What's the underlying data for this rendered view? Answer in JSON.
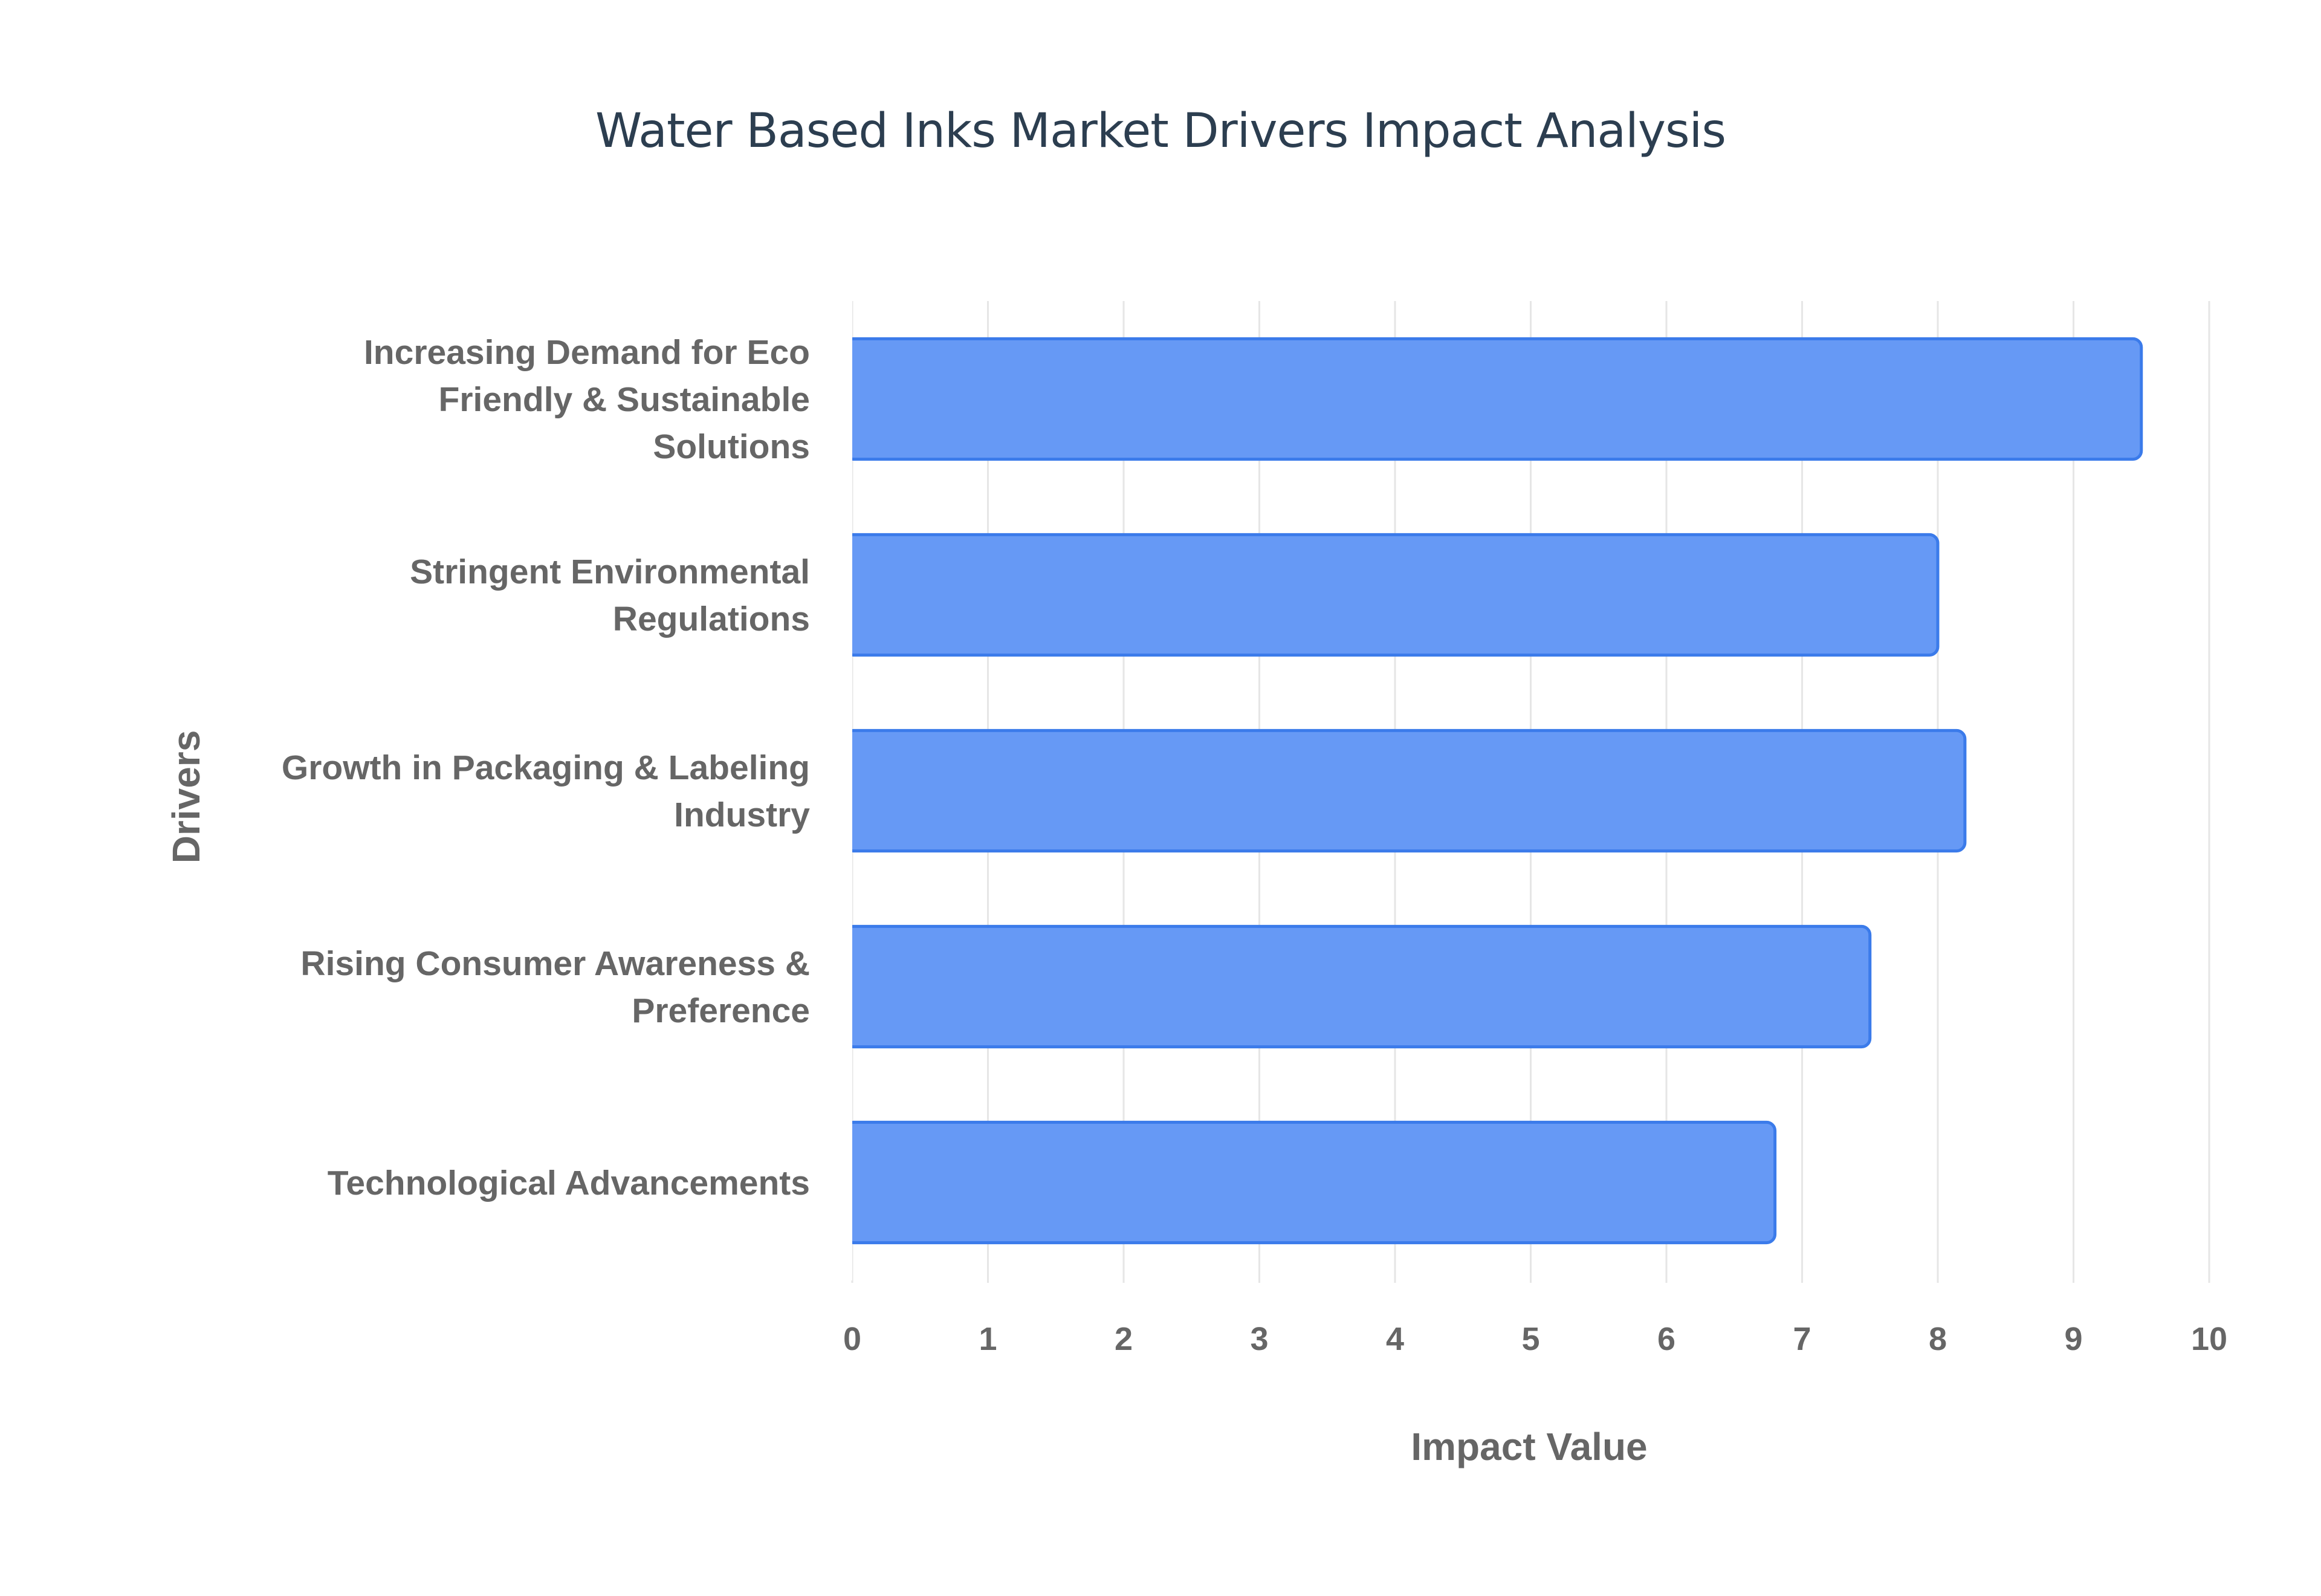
{
  "chart_data": {
    "type": "bar",
    "orientation": "horizontal",
    "title": "Water Based Inks Market Drivers Impact Analysis",
    "xlabel": "Impact Value",
    "ylabel": "Drivers",
    "categories": [
      "Increasing Demand for Eco Friendly & Sustainable Solutions",
      "Stringent Environmental Regulations",
      "Growth in Packaging & Labeling Industry",
      "Rising Consumer Awareness & Preference",
      "Technological Advancements"
    ],
    "category_lines": [
      [
        "Increasing Demand for Eco",
        "Friendly & Sustainable",
        "Solutions"
      ],
      [
        "Stringent Environmental",
        "Regulations"
      ],
      [
        "Growth in Packaging & Labeling",
        "Industry"
      ],
      [
        "Rising Consumer Awareness &",
        "Preference"
      ],
      [
        "Technological Advancements"
      ]
    ],
    "values": [
      9.5,
      8,
      8.2,
      7.5,
      6.8
    ],
    "xlim": [
      0,
      10
    ],
    "xticks": [
      "0",
      "1",
      "2",
      "3",
      "4",
      "5",
      "6",
      "7",
      "8",
      "9",
      "10"
    ],
    "grid": true,
    "legend": "none",
    "colors": {
      "bar_fill": "#6699f5",
      "bar_stroke": "#3b7bea",
      "grid": "#e6e6e6",
      "text": "#666666",
      "title": "#2c3e50"
    }
  }
}
